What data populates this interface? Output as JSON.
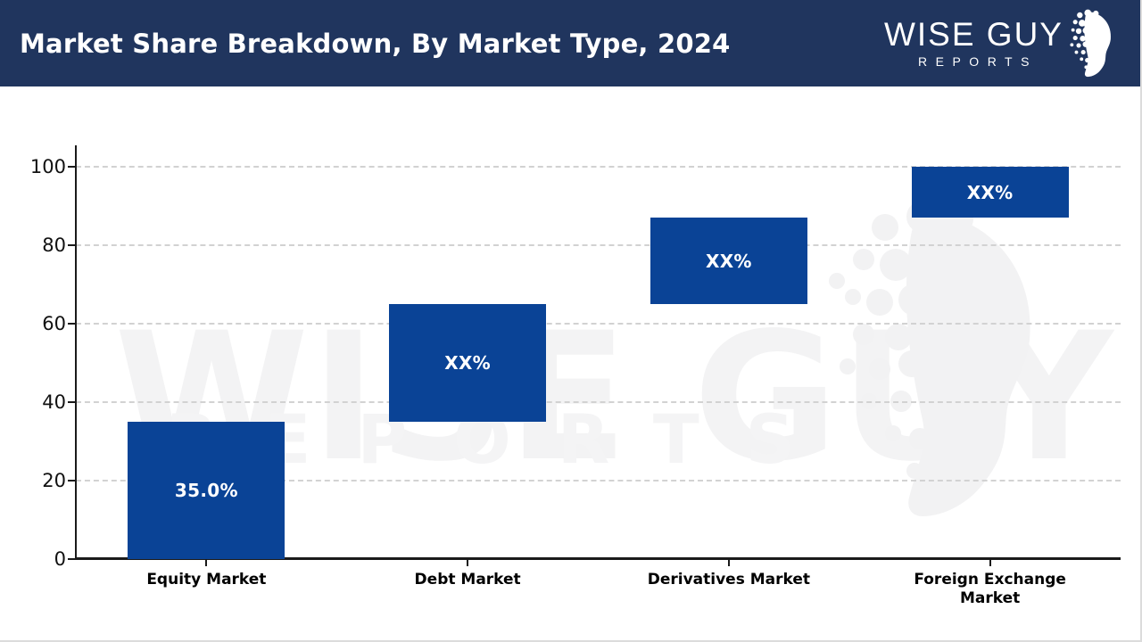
{
  "header": {
    "title": "Market Share Breakdown, By Market Type, 2024",
    "logo": {
      "line1": "WISE GUY",
      "line2": "REPORTS"
    }
  },
  "watermark": {
    "line1": "WISE GUY",
    "line2": "REPORTS"
  },
  "colors": {
    "header_bg": "#20355e",
    "bar_blue": "#0a4396",
    "bar_label": "#ffffff",
    "gridline": "#d2d2d2",
    "axis": "#1a1a1a",
    "watermark_gray": "#f3f3f4"
  },
  "chart_data": {
    "type": "bar",
    "subtype": "waterfall",
    "title": "Market Share Breakdown, By Market Type, 2024",
    "categories": [
      "Equity Market",
      "Debt Market",
      "Derivatives Market",
      "Foreign Exchange Market"
    ],
    "segments": [
      {
        "category": "Equity Market",
        "start": 0,
        "end": 35,
        "label": "35.0%"
      },
      {
        "category": "Debt Market",
        "start": 35,
        "end": 65,
        "label": "XX%"
      },
      {
        "category": "Derivatives Market",
        "start": 65,
        "end": 87,
        "label": "XX%"
      },
      {
        "category": "Foreign Exchange Market",
        "start": 87,
        "end": 100,
        "label": "XX%"
      }
    ],
    "ylim": [
      0,
      100
    ],
    "yticks": [
      0,
      20,
      40,
      60,
      80,
      100
    ],
    "grid": "horizontal-dashed",
    "legend": "none",
    "bar_color": "#0a4396",
    "label_color": "#ffffff"
  }
}
